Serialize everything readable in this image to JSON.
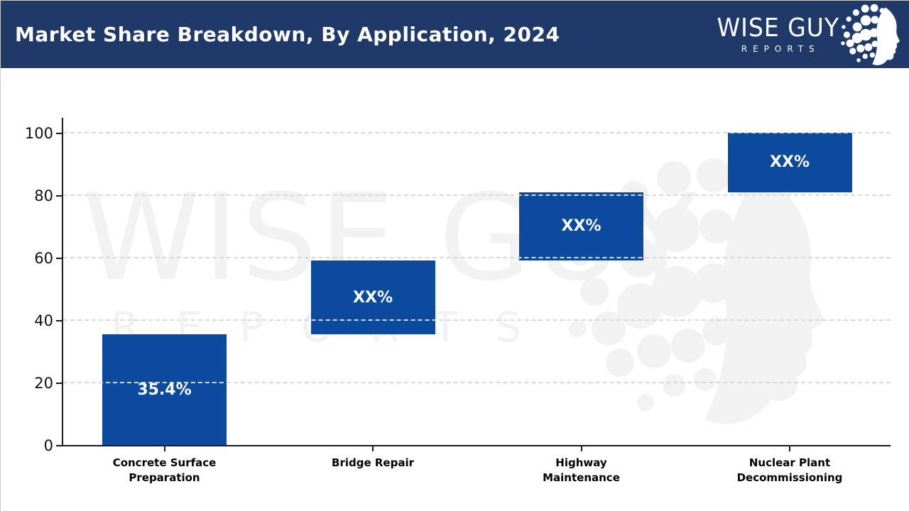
{
  "header": {
    "title": "Market Share Breakdown, By Application, 2024",
    "logo": {
      "line1": "WISE GUY",
      "line2": "REPORTS"
    }
  },
  "watermark": {
    "line1": "WISE GUY",
    "line2": "REPORTS"
  },
  "colors": {
    "header_bg": "#1f3a68",
    "bar": "#0b4a9c",
    "axis": "#1a1a1a",
    "gridline": "#d8d8d8",
    "bar_label": "#ffffff",
    "watermark": "#f2f2f2"
  },
  "chart_data": {
    "type": "bar",
    "subtype": "waterfall-stacked-percentage",
    "title": "Market Share Breakdown, By Application, 2024",
    "xlabel": "",
    "ylabel": "",
    "ylim": [
      0,
      100
    ],
    "yticks": [
      0,
      20,
      40,
      60,
      80,
      100
    ],
    "grid": "horizontal-dashed",
    "legend": "none",
    "categories": [
      "Concrete Surface\nPreparation",
      "Bridge Repair",
      "Highway\nMaintenance",
      "Nuclear Plant\nDecommissioning"
    ],
    "segments": [
      {
        "category": "Concrete Surface Preparation",
        "start": 0,
        "end": 35.4,
        "value": 35.4,
        "label": "35.4%"
      },
      {
        "category": "Bridge Repair",
        "start": 35.4,
        "end": 59,
        "value": 23.6,
        "label": "XX%"
      },
      {
        "category": "Highway Maintenance",
        "start": 59,
        "end": 81,
        "value": 22,
        "label": "XX%"
      },
      {
        "category": "Nuclear Plant Decommissioning",
        "start": 81,
        "end": 100,
        "value": 19,
        "label": "XX%"
      }
    ]
  }
}
